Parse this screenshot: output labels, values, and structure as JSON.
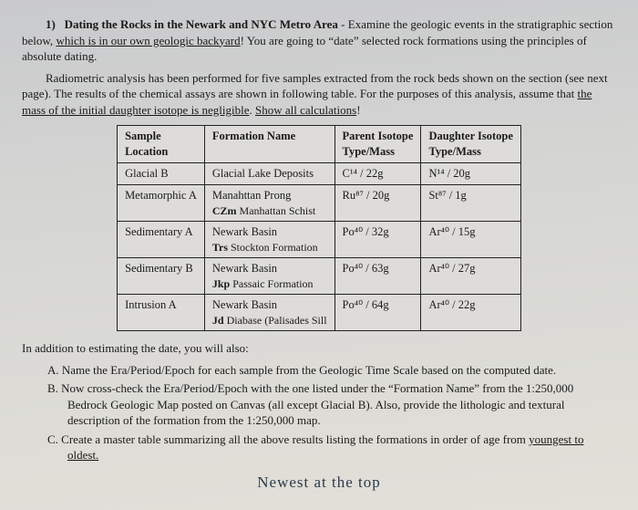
{
  "heading": {
    "number": "1)",
    "title": "Dating the Rocks in the Newark and NYC Metro Area",
    "dash": " - ",
    "tail1": "Examine the geologic events in the stratigraphic section below, ",
    "underlined": "which is in our own geologic backyard",
    "tail2": "! You are going to “date” selected rock formations using the principles of absolute dating."
  },
  "para2": {
    "a": "Radiometric analysis has been performed for five samples extracted from the rock beds shown on the section (see next page). The results of the chemical assays are shown in following table. For the purposes of this analysis, assume that ",
    "u1": "the mass of the initial daughter isotope is negligible",
    "b": ".  ",
    "u2": "Show all calculations",
    "c": "!"
  },
  "table": {
    "headers": {
      "c1a": "Sample",
      "c1b": "Location",
      "c2": "Formation Name",
      "c3a": "Parent Isotope",
      "c3b": "Type/Mass",
      "c4a": "Daughter Isotope",
      "c4b": "Type/Mass"
    },
    "rows": [
      {
        "loc": "Glacial B",
        "name": "Glacial Lake Deposits",
        "sub": "",
        "parent": "C¹⁴ / 22g",
        "daughter": "N¹⁴ / 20g"
      },
      {
        "loc": "Metamorphic A",
        "name": "Manahttan Prong",
        "sub": "CZm Manhattan Schist",
        "parent": "Ru⁸⁷ / 20g",
        "daughter": "St⁸⁷ / 1g"
      },
      {
        "loc": "Sedimentary A",
        "name": "Newark Basin",
        "sub": "Trs Stockton Formation",
        "parent": "Po⁴⁰ / 32g",
        "daughter": "Ar⁴⁰ / 15g"
      },
      {
        "loc": "Sedimentary B",
        "name": "Newark Basin",
        "sub": "Jkp Passaic Formation",
        "parent": "Po⁴⁰ / 63g",
        "daughter": "Ar⁴⁰ / 27g"
      },
      {
        "loc": "Intrusion A",
        "name": "Newark Basin",
        "sub": "Jd Diabase (Palisades Sill",
        "parent": "Po⁴⁰ / 64g",
        "daughter": "Ar⁴⁰ / 22g"
      }
    ]
  },
  "after_table": "In addition to estimating the date, you will also:",
  "items": {
    "A": "A.  Name the Era/Period/Epoch for each sample from the Geologic Time Scale based on the computed date.",
    "B": "B.  Now cross-check the Era/Period/Epoch with the one listed under the “Formation Name” from the 1:250,000 Bedrock Geologic Map posted on Canvas (all except Glacial B). Also, provide the lithologic and textural description of the formation from the 1:250,000 map.",
    "C_a": "C.  Create a master table summarizing all the above results listing the formations in order of age from ",
    "C_u": "youngest to oldest.",
    "C_b": ""
  },
  "handwriting": "Newest at the top"
}
